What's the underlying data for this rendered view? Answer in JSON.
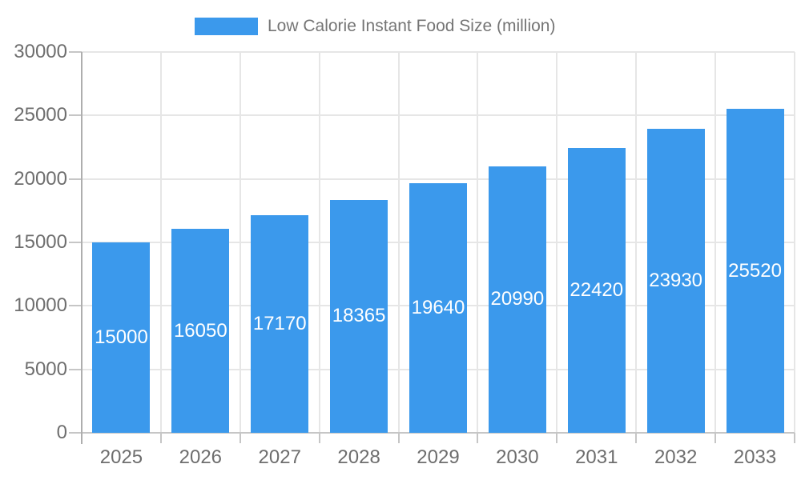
{
  "chart_data": {
    "type": "bar",
    "title": "Low Calorie Instant Food Size (million)",
    "categories": [
      "2025",
      "2026",
      "2027",
      "2028",
      "2029",
      "2030",
      "2031",
      "2032",
      "2033"
    ],
    "values": [
      15000,
      16050,
      17170,
      18365,
      19640,
      20990,
      22420,
      23930,
      25520
    ],
    "xlabel": "",
    "ylabel": "",
    "ylim": [
      0,
      30000
    ],
    "yticks": [
      0,
      5000,
      10000,
      15000,
      20000,
      25000,
      30000
    ],
    "bar_color": "#3B99EC",
    "value_label_color": "#FFFFFF",
    "value_label_position": "inside-center",
    "legend_position": "top",
    "grid": true
  }
}
